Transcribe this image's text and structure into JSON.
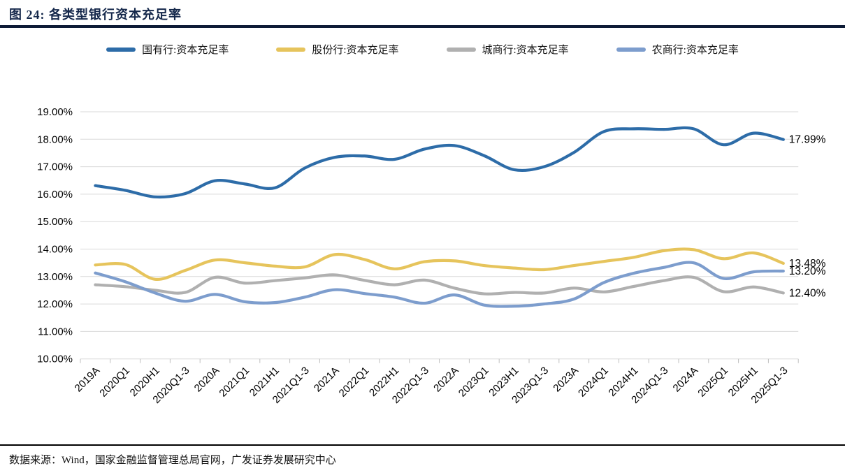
{
  "figure_title": "图 24: 各类型银行资本充足率",
  "source_note": "数据来源：Wind，国家金融监督管理总局官网，广发证券发展研究中心",
  "colors": {
    "title_navy": "#15284b",
    "rule_dark": "#0d1b36",
    "gridline": "#d9d9d9",
    "axis_text": "#000000"
  },
  "chart_data": {
    "type": "line",
    "title": "各类型银行资本充足率",
    "categories": [
      "2019A",
      "2020Q1",
      "2020H1",
      "2020Q1-3",
      "2020A",
      "2021Q1",
      "2021H1",
      "2021Q1-3",
      "2021A",
      "2022Q1",
      "2022H1",
      "2022Q1-3",
      "2022A",
      "2023Q1",
      "2023H1",
      "2023Q1-3",
      "2023A",
      "2024Q1",
      "2024H1",
      "2024Q1-3",
      "2024A",
      "2025Q1",
      "2025H1",
      "2025Q1-3"
    ],
    "series": [
      {
        "name": "国有行:资本充足率",
        "color": "#2d6ca8",
        "values": [
          16.31,
          16.14,
          15.9,
          16.02,
          16.49,
          16.37,
          16.23,
          16.95,
          17.34,
          17.39,
          17.27,
          17.64,
          17.77,
          17.4,
          16.89,
          17.0,
          17.52,
          18.28,
          18.38,
          18.36,
          18.38,
          17.8,
          18.22,
          17.99
        ],
        "end_label": "17.99%"
      },
      {
        "name": "股份行:资本充足率",
        "color": "#e6c45c",
        "values": [
          13.42,
          13.44,
          12.9,
          13.22,
          13.6,
          13.5,
          13.38,
          13.35,
          13.8,
          13.62,
          13.28,
          13.54,
          13.57,
          13.4,
          13.31,
          13.25,
          13.4,
          13.55,
          13.7,
          13.94,
          13.98,
          13.65,
          13.86,
          13.48
        ],
        "end_label": "13.48%"
      },
      {
        "name": "城商行:资本充足率",
        "color": "#b0b0b0",
        "values": [
          12.7,
          12.63,
          12.5,
          12.42,
          12.97,
          12.76,
          12.85,
          12.95,
          13.06,
          12.86,
          12.7,
          12.87,
          12.58,
          12.37,
          12.42,
          12.4,
          12.58,
          12.44,
          12.64,
          12.85,
          12.97,
          12.45,
          12.62,
          12.4
        ],
        "end_label": "12.40%"
      },
      {
        "name": "农商行:资本充足率",
        "color": "#7d9dcd",
        "values": [
          13.13,
          12.81,
          12.4,
          12.1,
          12.35,
          12.08,
          12.05,
          12.25,
          12.52,
          12.38,
          12.25,
          12.03,
          12.33,
          11.96,
          11.92,
          12.0,
          12.18,
          12.78,
          13.12,
          13.33,
          13.5,
          12.93,
          13.17,
          13.2
        ],
        "end_label": "13.20%"
      },
      {
        "name": "",
        "color": "",
        "values": [],
        "end_label": ""
      }
    ],
    "ylim": [
      10,
      19
    ],
    "ytick_step": 1,
    "yticks": [
      "19.00%",
      "18.00%",
      "17.00%",
      "16.00%",
      "15.00%",
      "14.00%",
      "13.00%",
      "12.00%",
      "11.00%",
      "10.00%"
    ],
    "grid": "horizontal",
    "legend_position": "top"
  }
}
